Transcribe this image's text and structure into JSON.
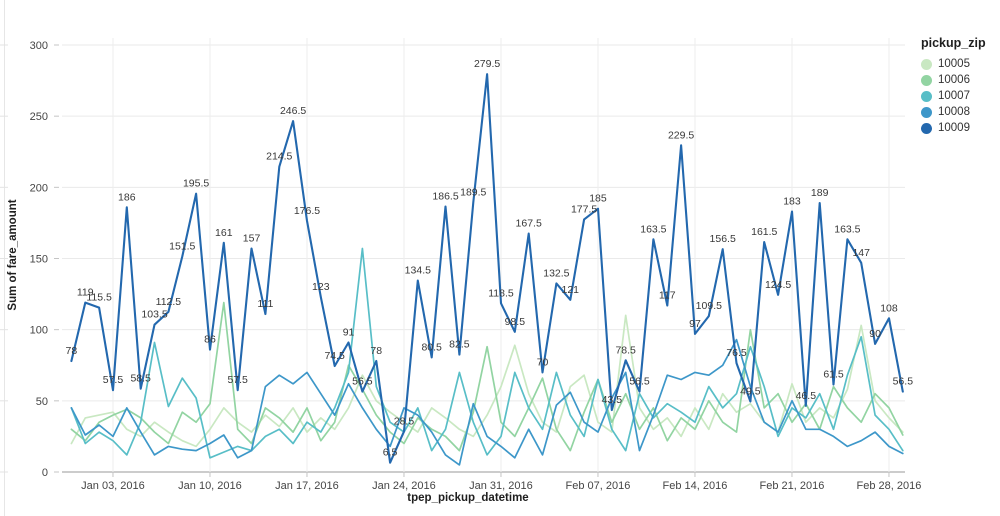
{
  "chart_data": {
    "type": "line",
    "title": "",
    "xlabel": "tpep_pickup_datetime",
    "ylabel": "Sum of fare_amount",
    "ylim": [
      0,
      300
    ],
    "y_ticks": [
      0,
      50,
      100,
      150,
      200,
      250,
      300
    ],
    "grid": true,
    "legend_title": "pickup_zip",
    "legend_position": "right-outside-top",
    "x": [
      "2015-12-31",
      "2016-01-01",
      "2016-01-02",
      "2016-01-03",
      "2016-01-04",
      "2016-01-05",
      "2016-01-06",
      "2016-01-07",
      "2016-01-08",
      "2016-01-09",
      "2016-01-10",
      "2016-01-11",
      "2016-01-12",
      "2016-01-13",
      "2016-01-14",
      "2016-01-15",
      "2016-01-16",
      "2016-01-17",
      "2016-01-18",
      "2016-01-19",
      "2016-01-20",
      "2016-01-21",
      "2016-01-22",
      "2016-01-23",
      "2016-01-24",
      "2016-01-25",
      "2016-01-26",
      "2016-01-27",
      "2016-01-28",
      "2016-01-29",
      "2016-01-30",
      "2016-01-31",
      "2016-02-01",
      "2016-02-02",
      "2016-02-03",
      "2016-02-04",
      "2016-02-05",
      "2016-02-06",
      "2016-02-07",
      "2016-02-08",
      "2016-02-09",
      "2016-02-10",
      "2016-02-11",
      "2016-02-12",
      "2016-02-13",
      "2016-02-14",
      "2016-02-15",
      "2016-02-16",
      "2016-02-17",
      "2016-02-18",
      "2016-02-19",
      "2016-02-20",
      "2016-02-21",
      "2016-02-22",
      "2016-02-23",
      "2016-02-24",
      "2016-02-25",
      "2016-02-26",
      "2016-02-27",
      "2016-02-28",
      "2016-02-29"
    ],
    "x_ticks": [
      {
        "index": 3,
        "label": "Jan 03, 2016"
      },
      {
        "index": 10,
        "label": "Jan 10, 2016"
      },
      {
        "index": 17,
        "label": "Jan 17, 2016"
      },
      {
        "index": 24,
        "label": "Jan 24, 2016"
      },
      {
        "index": 31,
        "label": "Jan 31, 2016"
      },
      {
        "index": 38,
        "label": "Feb 07, 2016"
      },
      {
        "index": 45,
        "label": "Feb 14, 2016"
      },
      {
        "index": 52,
        "label": "Feb 21, 2016"
      },
      {
        "index": 59,
        "label": "Feb 28, 2016"
      }
    ],
    "series": [
      {
        "name": "10005",
        "color": "#c9e8c2",
        "data_labels": false,
        "values": [
          20,
          38,
          40,
          42,
          30,
          25,
          35,
          28,
          22,
          18,
          30,
          45,
          35,
          28,
          40,
          32,
          45,
          28,
          38,
          30,
          45,
          68,
          50,
          42,
          35,
          28,
          45,
          38,
          30,
          25,
          40,
          60,
          89,
          55,
          35,
          28,
          60,
          68,
          35,
          28,
          110,
          45,
          30,
          38,
          25,
          45,
          30,
          55,
          42,
          48,
          35,
          28,
          62,
          35,
          45,
          38,
          58,
          103,
          50,
          38,
          28
        ]
      },
      {
        "name": "10006",
        "color": "#92d4a2",
        "data_labels": false,
        "values": [
          30,
          22,
          35,
          40,
          44,
          38,
          28,
          20,
          42,
          35,
          48,
          119,
          30,
          20,
          45,
          38,
          28,
          45,
          22,
          35,
          75,
          58,
          40,
          28,
          20,
          38,
          30,
          25,
          15,
          42,
          88,
          35,
          25,
          45,
          66,
          30,
          15,
          42,
          65,
          35,
          55,
          30,
          45,
          22,
          38,
          30,
          50,
          35,
          28,
          100,
          45,
          55,
          35,
          48,
          30,
          60,
          45,
          35,
          55,
          45,
          26
        ]
      },
      {
        "name": "10007",
        "color": "#58bec7",
        "data_labels": false,
        "values": [
          45,
          20,
          28,
          22,
          12,
          35,
          91,
          46,
          66,
          52,
          10,
          14,
          18,
          15,
          25,
          30,
          20,
          35,
          28,
          45,
          70,
          157,
          60,
          35,
          28,
          45,
          15,
          30,
          70,
          35,
          12,
          25,
          70,
          45,
          30,
          70,
          40,
          25,
          65,
          30,
          15,
          55,
          38,
          48,
          42,
          35,
          60,
          45,
          55,
          88,
          60,
          25,
          45,
          38,
          55,
          30,
          68,
          95,
          40,
          30,
          15
        ]
      },
      {
        "name": "10008",
        "color": "#3d97c9",
        "data_labels": false,
        "values": [
          45,
          26,
          33,
          25,
          45,
          28,
          12,
          18,
          16,
          15,
          20,
          26,
          10,
          15,
          60,
          68,
          62,
          70,
          55,
          40,
          62,
          45,
          30,
          18,
          45,
          40,
          28,
          12,
          5,
          48,
          25,
          18,
          10,
          30,
          12,
          47,
          56,
          35,
          28,
          52,
          70,
          15,
          40,
          68,
          65,
          70,
          68,
          75,
          93,
          60,
          35,
          28,
          50,
          30,
          30,
          25,
          18,
          22,
          28,
          18,
          13
        ]
      },
      {
        "name": "10009",
        "color": "#2368ae",
        "data_labels": true,
        "values": [
          78,
          119,
          115.5,
          57.5,
          186,
          58.5,
          103.5,
          112.5,
          151.5,
          195.5,
          86,
          161,
          57.5,
          157,
          111,
          214.5,
          246.5,
          176.5,
          123,
          74.5,
          91,
          56.5,
          78,
          6.5,
          28.5,
          134.5,
          80.5,
          186.5,
          82.5,
          189.5,
          279.5,
          118.5,
          98.5,
          167.5,
          70,
          132.5,
          121,
          177.5,
          185,
          43.5,
          78.5,
          56.5,
          163.5,
          117,
          229.5,
          97,
          109.5,
          156.5,
          76.5,
          49.5,
          161.5,
          124.5,
          183,
          46.5,
          189,
          61.5,
          163.5,
          147,
          90,
          108,
          56.5
        ]
      }
    ],
    "style": {
      "grid_color": "#eaeaea",
      "axis_color": "#9a9a9a",
      "tick_color": "#c4c4c4",
      "tick_label_color": "#454545",
      "data_label_color": "#383838"
    }
  }
}
